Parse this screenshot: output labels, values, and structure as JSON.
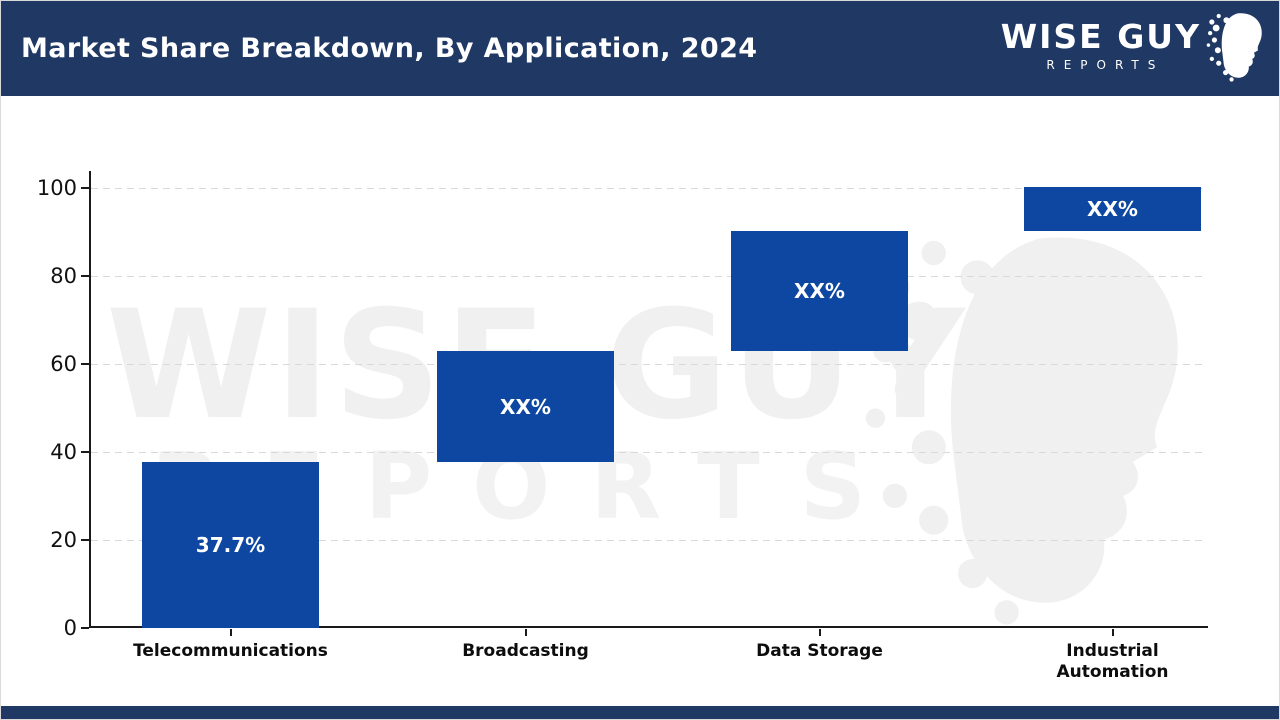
{
  "header": {
    "title": "Market Share Breakdown, By Application, 2024",
    "bg_color": "#1F3864",
    "logo": {
      "line1": "WISE GUY",
      "line2": "REPORTS"
    }
  },
  "watermark": {
    "line1": "WISE GUY",
    "line2": "REPORTS"
  },
  "chart_data": {
    "type": "bar",
    "style": "waterfall-stacked",
    "title": "Market Share Breakdown, By Application, 2024",
    "categories": [
      "Telecommunications",
      "Broadcasting",
      "Data Storage",
      "Industrial Automation"
    ],
    "category_lines": [
      [
        "Telecommunications"
      ],
      [
        "Broadcasting"
      ],
      [
        "Data Storage"
      ],
      [
        "Industrial",
        "Automation"
      ]
    ],
    "segments": [
      {
        "category": "Telecommunications",
        "start": 0,
        "end": 37.7,
        "label": "37.7%",
        "value": 37.7
      },
      {
        "category": "Broadcasting",
        "start": 37.7,
        "end": 62.9,
        "label": "XX%",
        "value_estimate": 25.2
      },
      {
        "category": "Data Storage",
        "start": 62.9,
        "end": 90.2,
        "label": "XX%",
        "value_estimate": 27.3
      },
      {
        "category": "Industrial Automation",
        "start": 90.2,
        "end": 100.2,
        "label": "XX%",
        "value_estimate": 10.0
      }
    ],
    "xlabel": "",
    "ylabel": "",
    "yticks": [
      0,
      20,
      40,
      60,
      80,
      100
    ],
    "ylim": [
      0,
      103.8
    ],
    "grid": {
      "horizontal": true,
      "style": "dashed",
      "color": "#d9d9d9"
    },
    "legend": "none",
    "bar_color": "#0D47A1",
    "bar_label_color": "#ffffff",
    "axis_color": "#1a1a1a"
  },
  "footer": {
    "bg_color": "#1F3864"
  }
}
